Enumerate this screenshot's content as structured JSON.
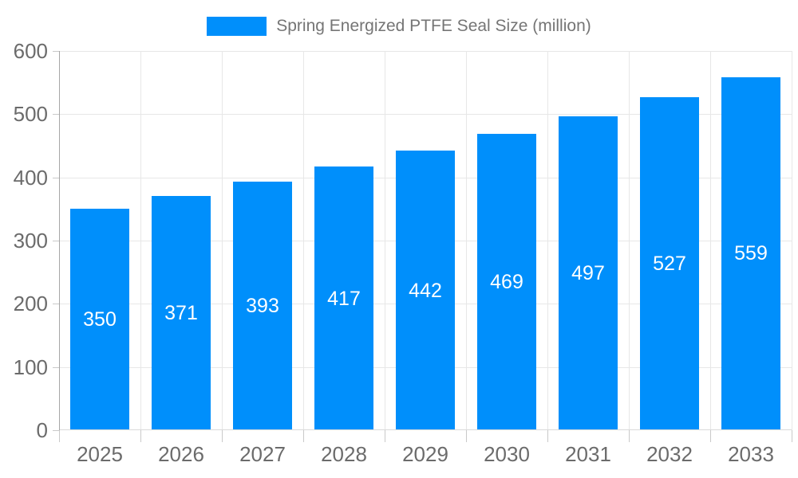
{
  "legend": {
    "label": "Spring Energized PTFE Seal Size (million)"
  },
  "colors": {
    "bar": "#008FFB",
    "grid": "#e7e7e7",
    "axis_line": "#a6a6a6",
    "tick": "#c9c9c9",
    "axis_label_text": "#6b6b6b",
    "legend_text": "#757575",
    "bar_label_text": "#ffffff",
    "background": "#ffffff"
  },
  "chart_data": {
    "type": "bar",
    "categories": [
      "2025",
      "2026",
      "2027",
      "2028",
      "2029",
      "2030",
      "2031",
      "2032",
      "2033"
    ],
    "series": [
      {
        "name": "Spring Energized PTFE Seal Size (million)",
        "values": [
          350,
          371,
          393,
          417,
          442,
          469,
          497,
          527,
          559
        ]
      }
    ],
    "title": "",
    "xlabel": "",
    "ylabel": "",
    "ylim": [
      0,
      600
    ],
    "yticks": [
      0,
      100,
      200,
      300,
      400,
      500,
      600
    ],
    "grid": true,
    "legend_position": "top",
    "data_labels": "inside-center"
  }
}
